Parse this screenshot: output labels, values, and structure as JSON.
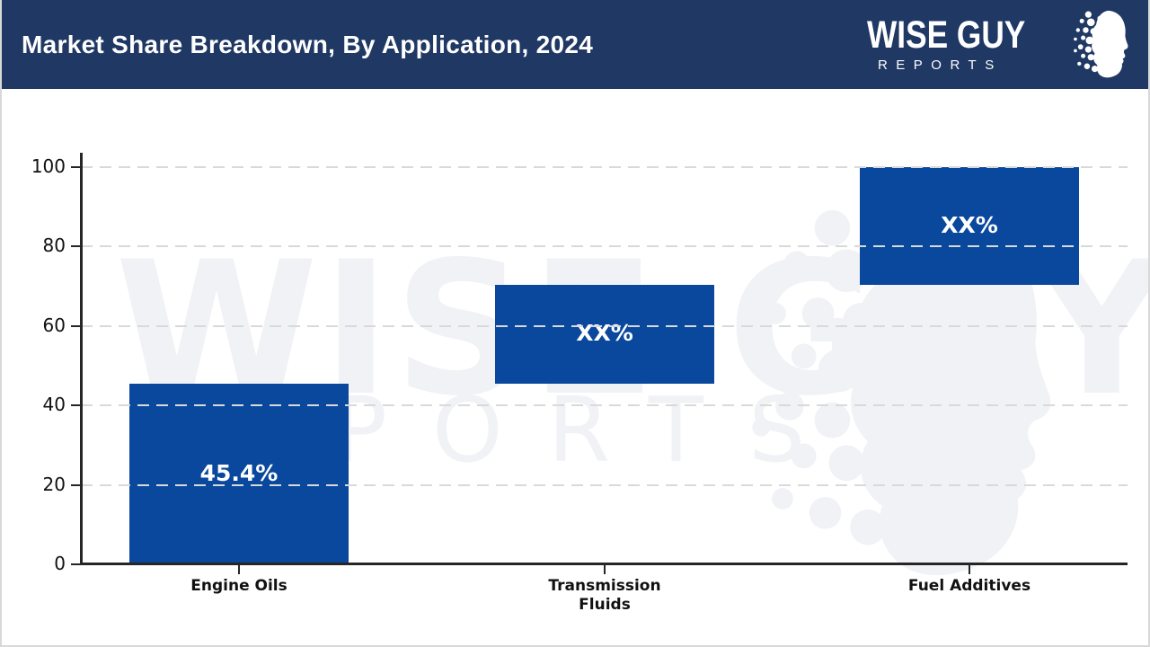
{
  "header": {
    "title": "Market Share Breakdown, By Application, 2024",
    "bg_color": "#1f3864",
    "logo": {
      "line1": "WISE GUY",
      "line2": "REPORTS"
    }
  },
  "watermark": {
    "line1": "WISE GUY",
    "line2": "REPORTS"
  },
  "chart_data": {
    "type": "bar",
    "subtype": "floating-stacked-percentage",
    "title": "Market Share Breakdown, By Application, 2024",
    "categories": [
      "Engine Oils",
      "Transmission Fluids",
      "Fuel Additives"
    ],
    "bars": [
      {
        "category": "Engine Oils",
        "start": 0,
        "end": 45.4,
        "label": "45.4%"
      },
      {
        "category": "Transmission Fluids",
        "start": 45.4,
        "end": 70.3,
        "label": "XX%"
      },
      {
        "category": "Fuel Additives",
        "start": 70.3,
        "end": 100,
        "label": "XX%"
      }
    ],
    "xlabel": "",
    "ylabel": "",
    "ylim": [
      0,
      100
    ],
    "yticks": [
      0,
      20,
      40,
      60,
      80,
      100
    ],
    "grid": "horizontal-dashed",
    "legend": null,
    "bar_color": "#0a489e",
    "grid_color": "#d9d9d9",
    "axis_color": "#262626"
  }
}
